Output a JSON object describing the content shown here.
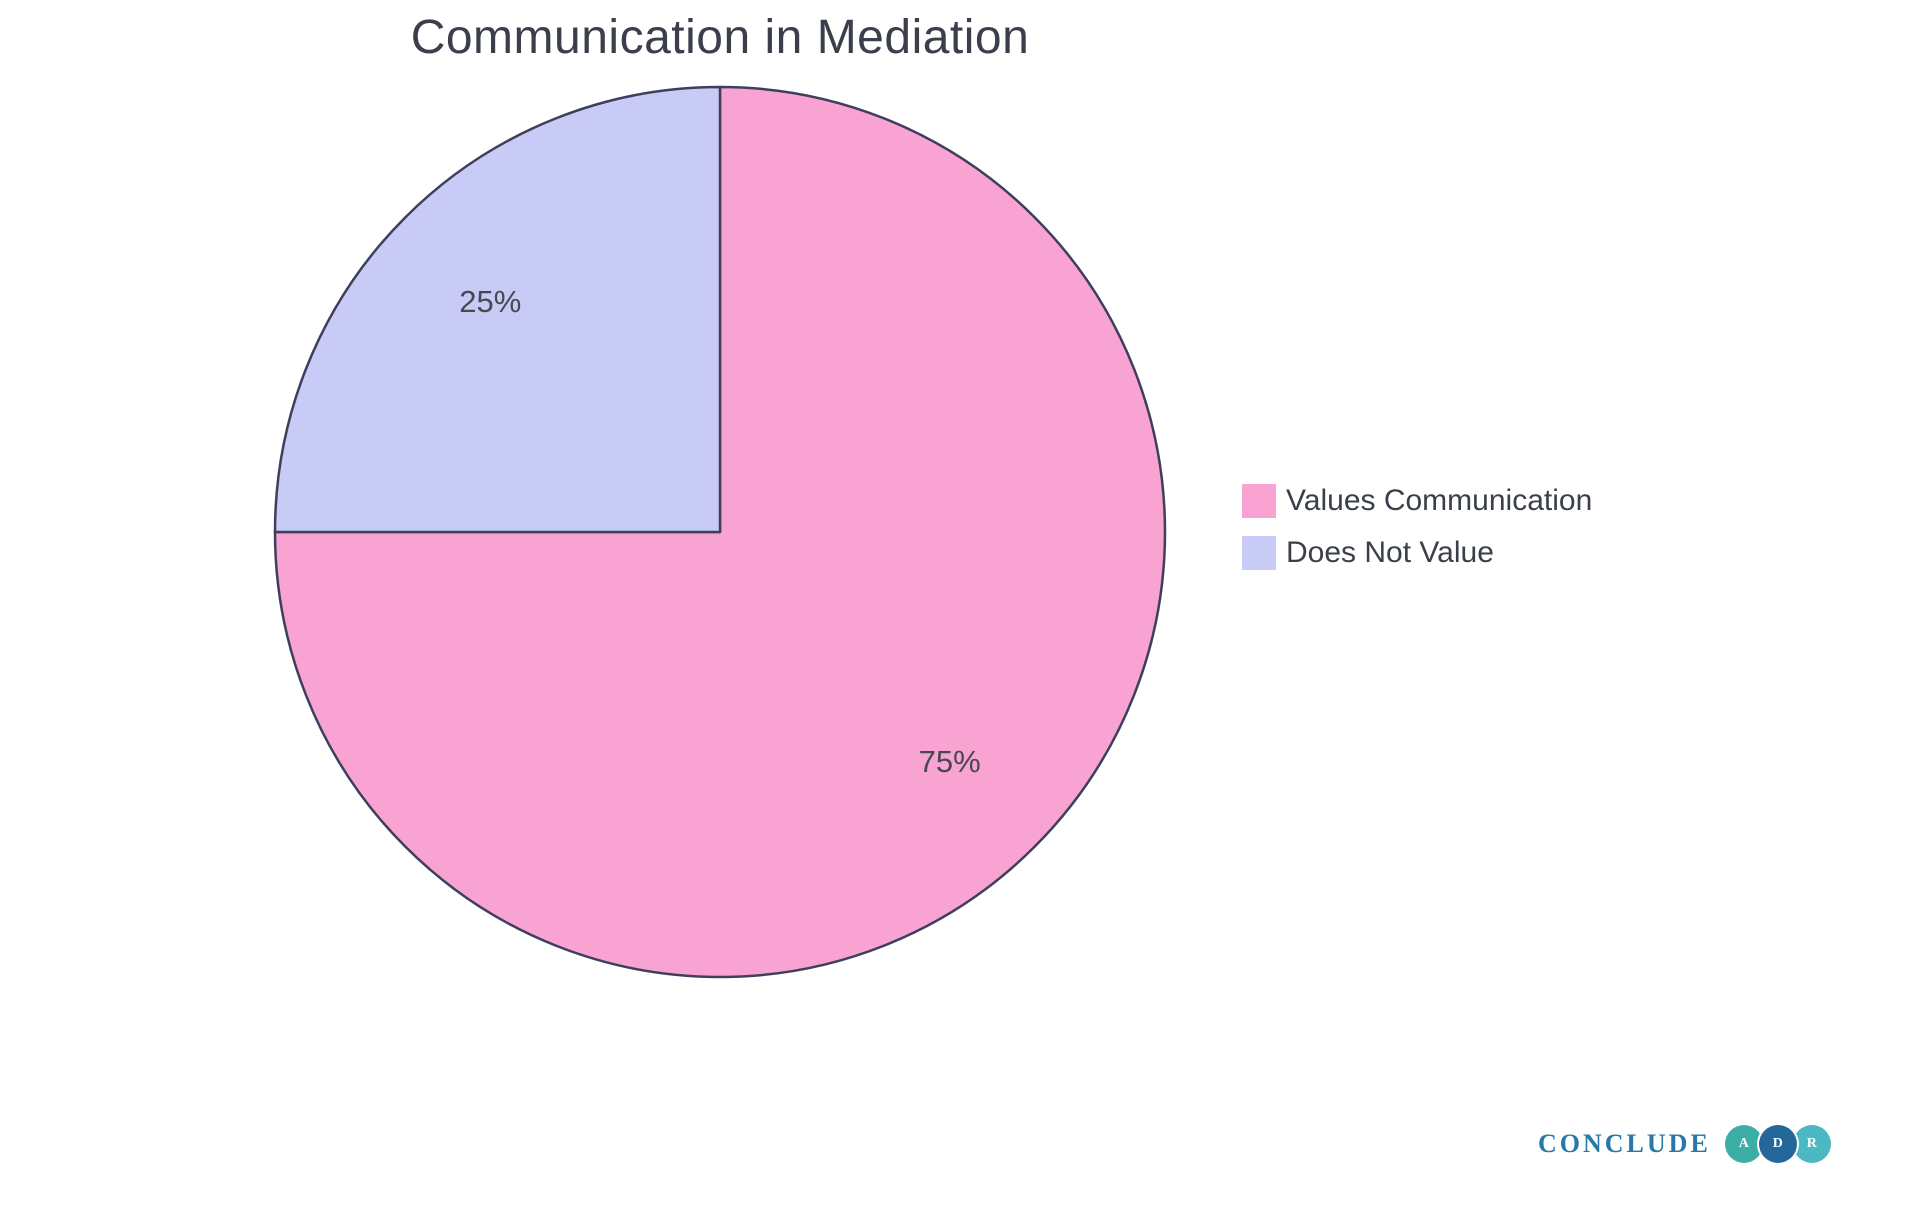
{
  "title": "Communication in Mediation",
  "chart_data": {
    "type": "pie",
    "title": "Communication in Mediation",
    "labels": [
      "Values Communication",
      "Does Not Value"
    ],
    "values": [
      75,
      25
    ],
    "value_labels": [
      "75%",
      "25%"
    ],
    "colors": [
      "#F9A3D2",
      "#C9CBF7"
    ],
    "stroke_color": "#3d3f5c",
    "start_angle_deg": 0,
    "direction": "clockwise",
    "legend_position": "right"
  },
  "legend": {
    "items": [
      {
        "label": "Values Communication",
        "color": "#F9A3D2"
      },
      {
        "label": "Does Not Value",
        "color": "#C9CBF7"
      }
    ]
  },
  "branding": {
    "wordmark": "CONCLUDE",
    "wordmark_color": "#2878a8",
    "badges": [
      {
        "letter": "A",
        "color": "#3bafa6"
      },
      {
        "letter": "D",
        "color": "#23679b"
      },
      {
        "letter": "R",
        "color": "#4bb9c4"
      }
    ]
  }
}
